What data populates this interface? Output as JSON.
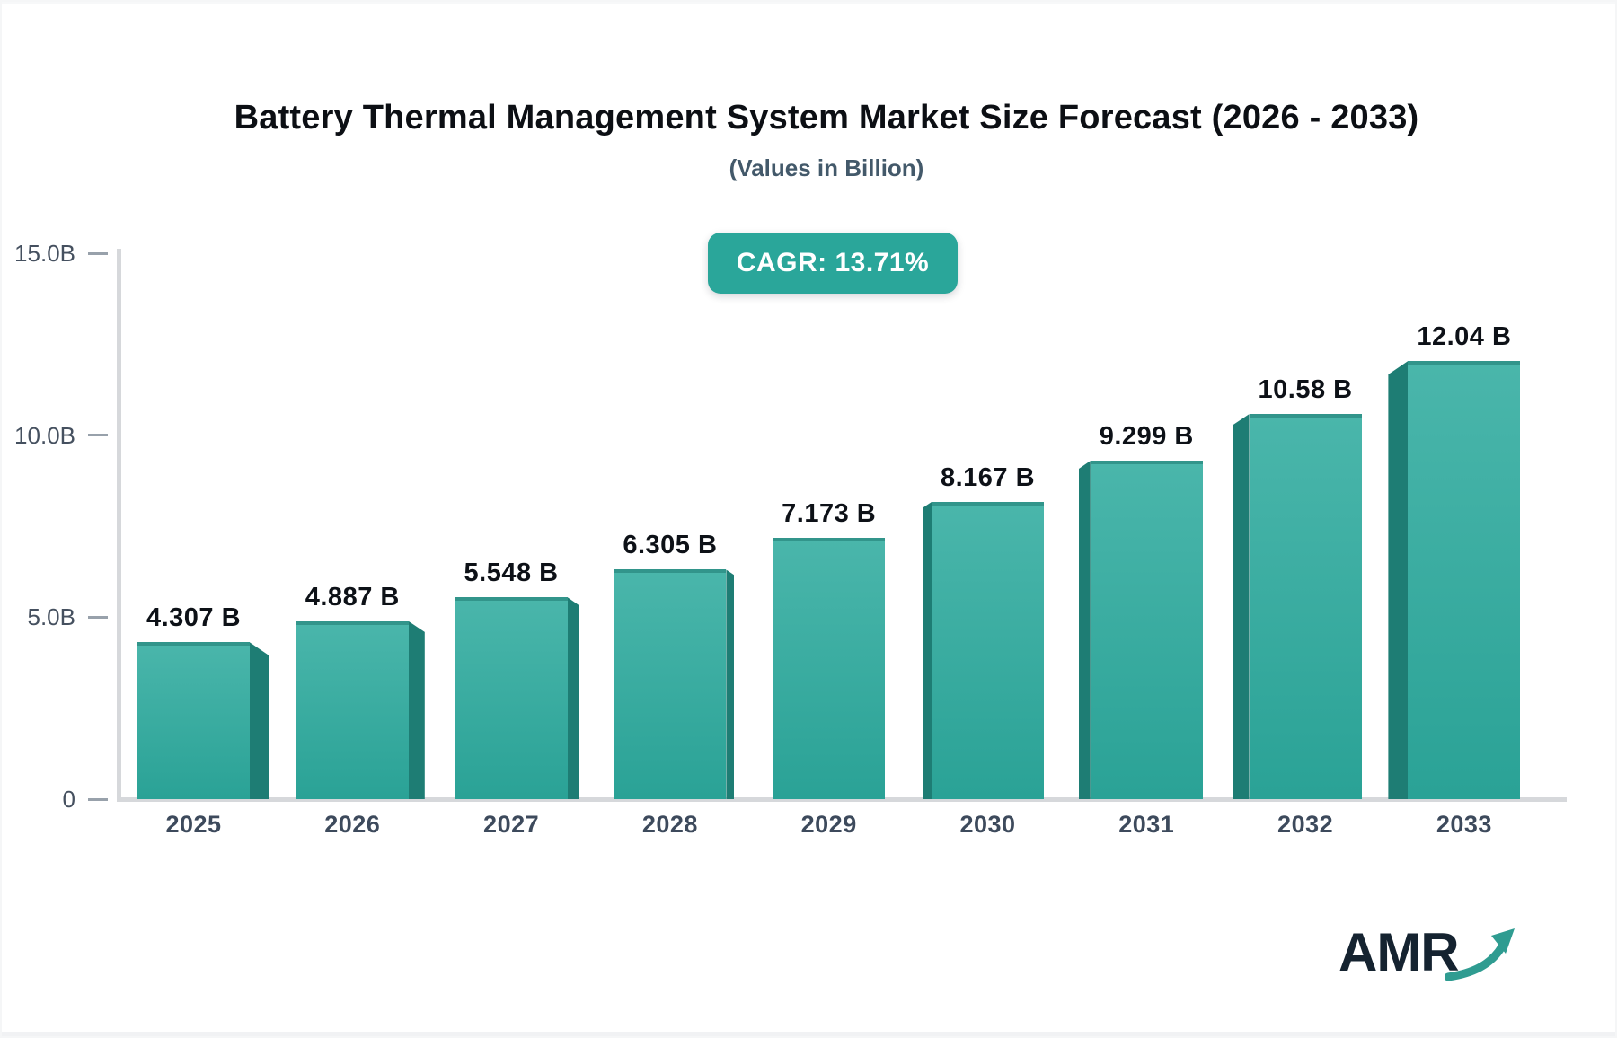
{
  "header": {
    "title": "Battery Thermal Management System Market Size Forecast (2026 - 2033)",
    "subtitle": "(Values in Billion)",
    "cagr_label": "CAGR: 13.71%"
  },
  "chart_data": {
    "type": "bar",
    "title": "Battery Thermal Management System Market Size Forecast (2026 - 2033)",
    "subtitle": "(Values in Billion)",
    "annotation": "CAGR: 13.71%",
    "categories": [
      "2025",
      "2026",
      "2027",
      "2028",
      "2029",
      "2030",
      "2031",
      "2032",
      "2033"
    ],
    "values": [
      4.307,
      4.887,
      5.548,
      6.305,
      7.173,
      8.167,
      9.299,
      10.58,
      12.04
    ],
    "bar_labels": [
      "4.307 B",
      "4.887 B",
      "5.548 B",
      "6.305 B",
      "7.173 B",
      "8.167 B",
      "9.299 B",
      "10.58 B",
      "12.04 B"
    ],
    "xlabel": "",
    "ylabel": "",
    "y_axis": {
      "ylim": [
        0,
        15
      ],
      "ticks": [
        {
          "value": 0,
          "label": "0"
        },
        {
          "value": 5,
          "label": "5.0B"
        },
        {
          "value": 10,
          "label": "10.0B"
        },
        {
          "value": 15,
          "label": "15.0B"
        }
      ]
    },
    "grid": false,
    "legend": false,
    "effect": "3d-perspective-bars",
    "colors": {
      "bar_front_top": "#4ab6ab",
      "bar_front_bottom": "#2aa296",
      "bar_side": "#1e7d74",
      "badge_bg": "#2aa69a",
      "axis_line": "#d6d8db",
      "tick_dash": "#98a1ab",
      "y_label": "#45505f",
      "x_label": "#3d4a5c",
      "value_label": "#0d1117",
      "title": "#0c0f14",
      "subtitle": "#43596a"
    }
  },
  "branding": {
    "logo_text": "AMR",
    "logo_icon": "growth-arrow-icon",
    "logo_color": "#152330",
    "arrow_color": "#2f9c91"
  }
}
